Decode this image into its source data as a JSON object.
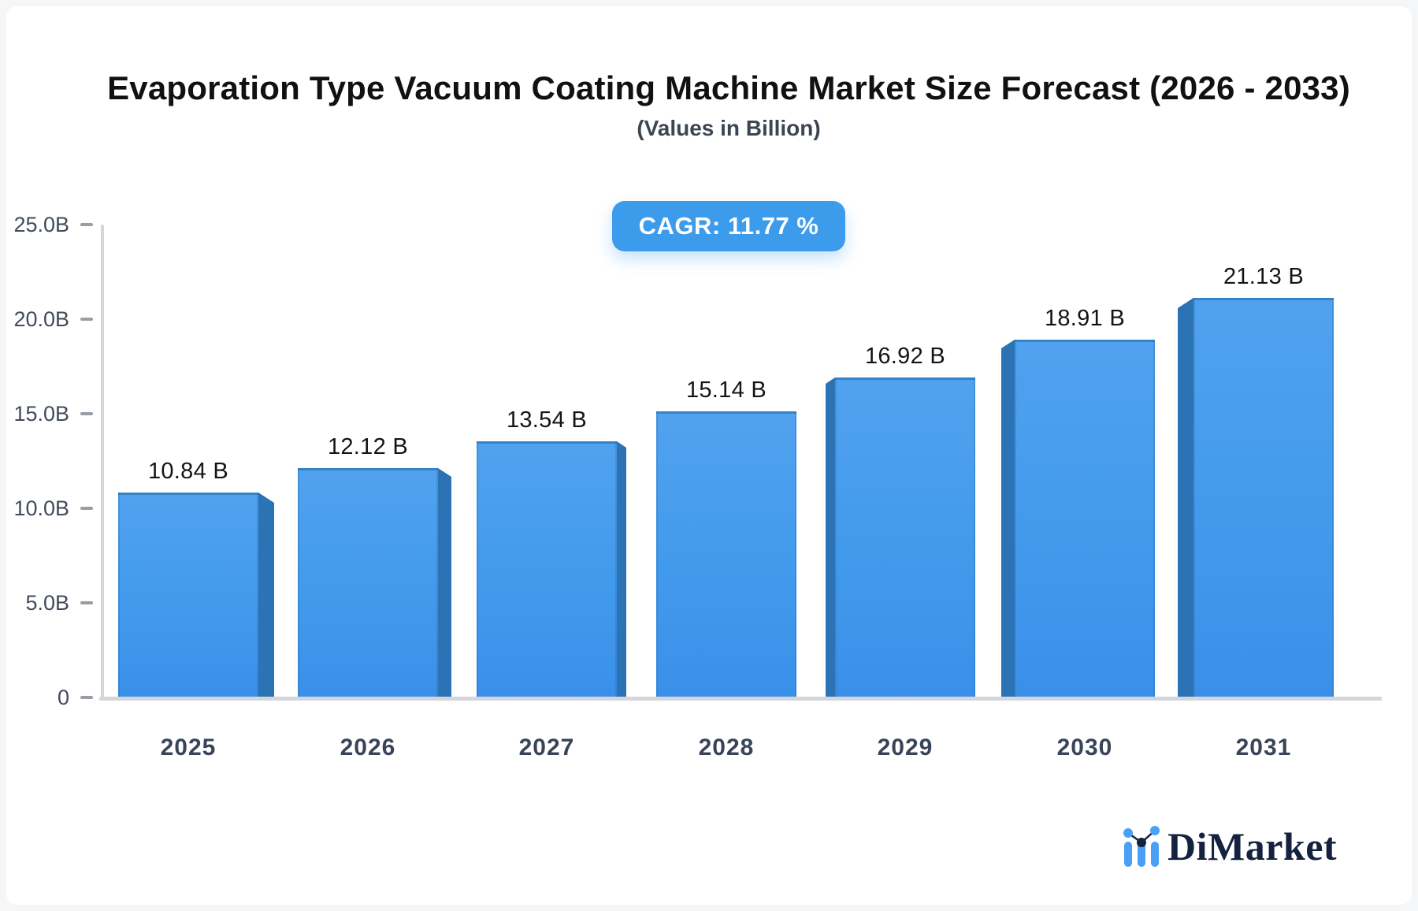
{
  "header": {
    "title": "Evaporation Type Vacuum Coating Machine Market Size Forecast (2026 - 2033)",
    "subtitle": "(Values in Billion)",
    "badge_label": "CAGR: 11.77 %"
  },
  "logo": {
    "name": "DiMarket",
    "icon": "bar-chart-logo-icon",
    "navy": "#15223f",
    "blue": "#4aa0f5"
  },
  "colors": {
    "bar_face_top": "#51a2ee",
    "bar_face_bottom": "#3a90e9",
    "bar_side": "#2b73b5",
    "badge_bg": "#3c9ceb",
    "axis": "#d5d6db",
    "text_dark": "#111111",
    "text_slate": "#3d4553"
  },
  "chart_data": {
    "type": "bar",
    "title": "Evaporation Type Vacuum Coating Machine Market Size Forecast (2026 - 2033)",
    "subtitle": "(Values in Billion)",
    "xlabel": "",
    "ylabel": "",
    "ylim": [
      0,
      25
    ],
    "grid": false,
    "legend": false,
    "categories": [
      "2025",
      "2026",
      "2027",
      "2028",
      "2029",
      "2030",
      "2031"
    ],
    "values": [
      10.84,
      12.12,
      13.54,
      15.14,
      16.92,
      18.91,
      21.13
    ],
    "value_labels": [
      "10.84 B",
      "12.12 B",
      "13.54 B",
      "15.14 B",
      "16.92 B",
      "18.91 B",
      "21.13 B"
    ],
    "y_ticks": [
      {
        "value": 0,
        "label": "0"
      },
      {
        "value": 5,
        "label": "5.0B"
      },
      {
        "value": 10,
        "label": "10.0B"
      },
      {
        "value": 15,
        "label": "15.0B"
      },
      {
        "value": 20,
        "label": "20.0B"
      },
      {
        "value": 25,
        "label": "25.0B"
      }
    ],
    "annotation": "CAGR: 11.77 %"
  }
}
